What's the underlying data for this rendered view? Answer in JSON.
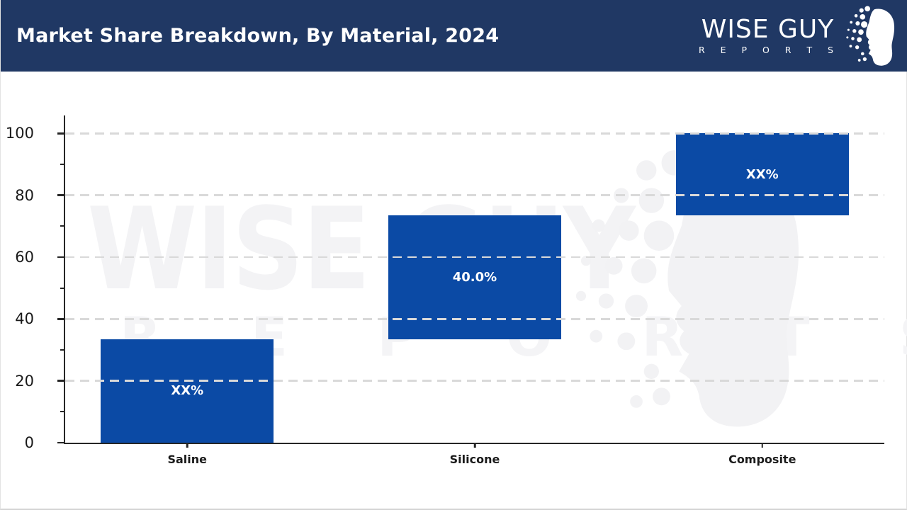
{
  "header": {
    "title": "Market Share Breakdown, By Material, 2024",
    "background_color": "#203864",
    "logo": {
      "brand_line1": "WISE GUY",
      "brand_line2": "R E P O R T S"
    }
  },
  "watermark": {
    "text_large": "WISE GUY",
    "text_small": "R E P O R T S"
  },
  "chart_data": {
    "type": "bar",
    "variant": "floating-waterfall",
    "title": "Market Share Breakdown, By Material, 2024",
    "categories": [
      "Saline",
      "Silicone",
      "Composite"
    ],
    "segments": [
      {
        "category": "Saline",
        "start": 0,
        "end": 33.5,
        "label": "XX%"
      },
      {
        "category": "Silicone",
        "start": 33.5,
        "end": 73.5,
        "label": "40.0%"
      },
      {
        "category": "Composite",
        "start": 73.5,
        "end": 100,
        "label": "XX%"
      }
    ],
    "xlabel": "",
    "ylabel": "",
    "ylim": [
      0,
      105.8
    ],
    "yticks_major": [
      0,
      20,
      40,
      60,
      80,
      100
    ],
    "yticks_minor": [
      10,
      30,
      50,
      70,
      90
    ],
    "grid": "horizontal-dashed",
    "grid_over_bars": true,
    "legend": "none",
    "bar_color": "#0b4aa5",
    "bar_label_color": "#ffffff",
    "axis_color": "#262626",
    "gridline_color": "#d9d9d9",
    "header_color": "#203864",
    "watermark_color": "#f3f3f5"
  }
}
